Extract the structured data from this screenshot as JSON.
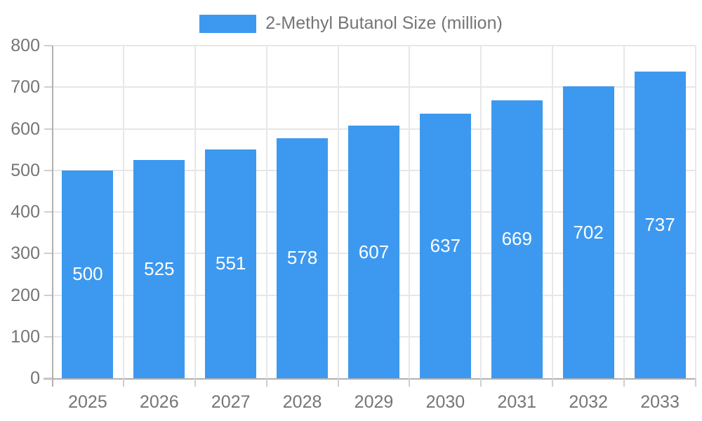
{
  "legend": {
    "label": "2-Methyl Butanol Size (million)"
  },
  "colors": {
    "bar": "#3D99EF",
    "grid": "#E7E7E7",
    "axis": "#B0B0B0",
    "tick": "#CFCFCF",
    "text": "#757575",
    "value_text": "#FFFFFF",
    "background": "#FFFFFF"
  },
  "chart_data": {
    "type": "bar",
    "categories": [
      "2025",
      "2026",
      "2027",
      "2028",
      "2029",
      "2030",
      "2031",
      "2032",
      "2033"
    ],
    "values": [
      500,
      525,
      551,
      578,
      607,
      637,
      669,
      702,
      737
    ],
    "title": "2-Methyl Butanol Size (million)",
    "xlabel": "",
    "ylabel": "",
    "ylim": [
      0,
      800
    ],
    "ytick_step": 100,
    "grid": true,
    "legend_position": "top",
    "value_labels": "inside-center"
  }
}
